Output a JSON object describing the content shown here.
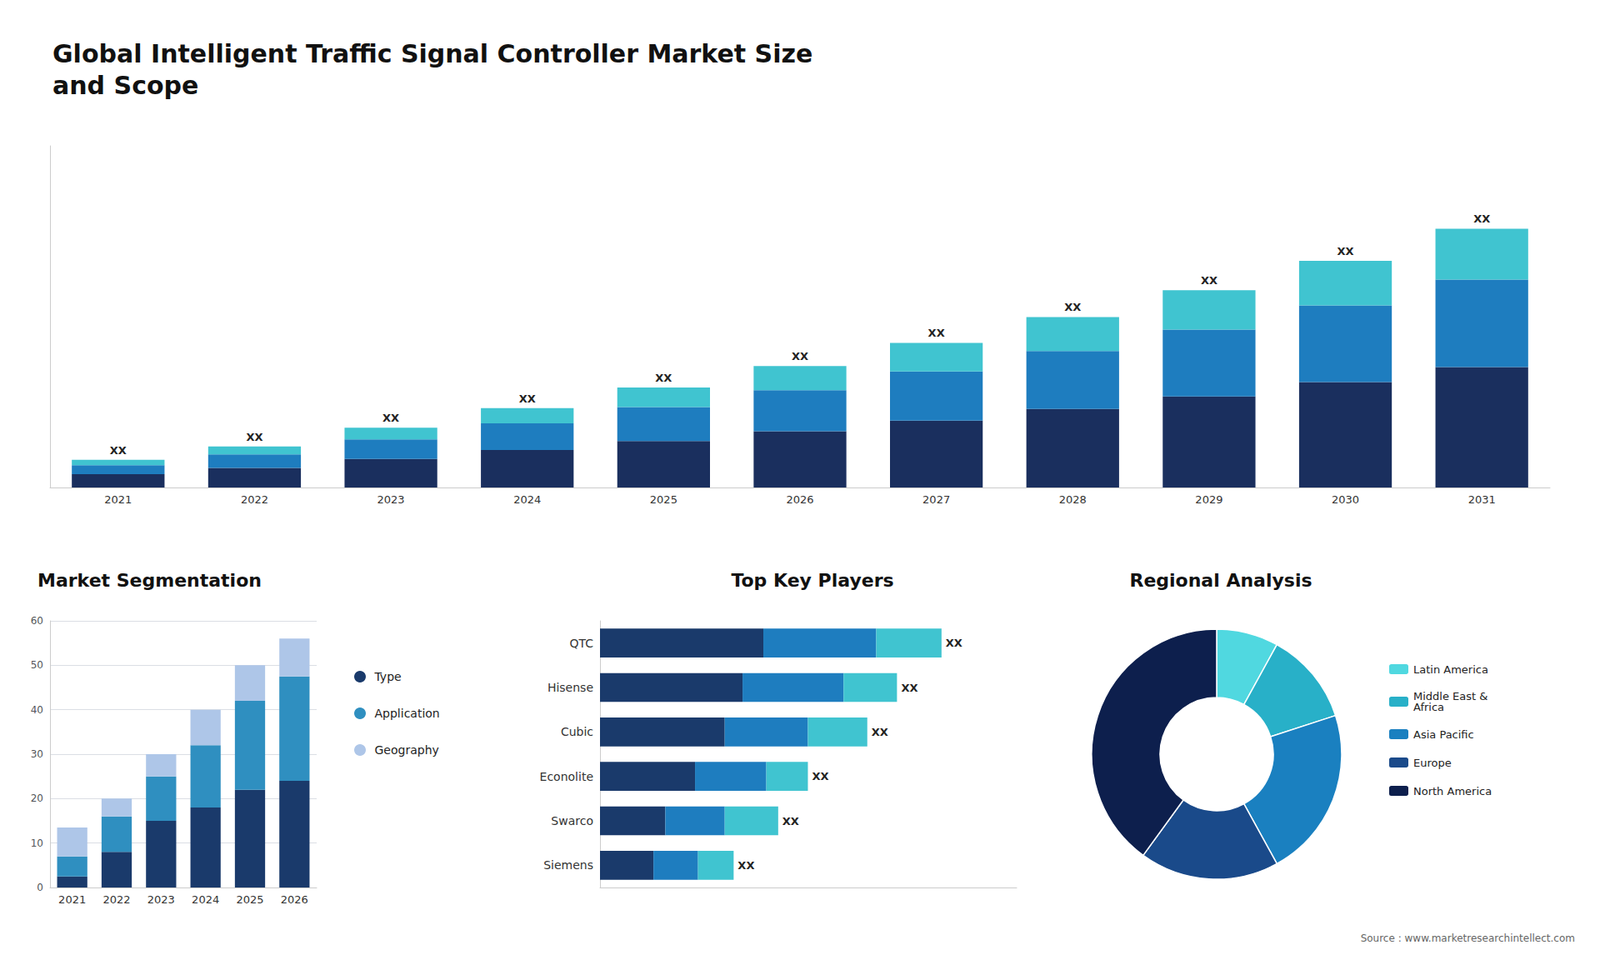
{
  "title": "Global Intelligent Traffic Signal Controller Market Size\nand Scope",
  "annotations": [
    "Source : www.marketresearchintellect.com"
  ],
  "chart_data": [
    {
      "type": "bar",
      "stacked": true,
      "categories": [
        "2021",
        "2022",
        "2023",
        "2024",
        "2025",
        "2026",
        "2027",
        "2028",
        "2029",
        "2030",
        "2031"
      ],
      "series": [
        {
          "color": "#1a2f5e",
          "values": [
            1.5,
            2.2,
            3.2,
            4.2,
            5.2,
            6.3,
            7.5,
            8.8,
            10.2,
            11.8,
            13.5
          ]
        },
        {
          "color": "#1e7dbf",
          "values": [
            1.0,
            1.5,
            2.2,
            3.0,
            3.8,
            4.6,
            5.5,
            6.5,
            7.5,
            8.6,
            9.8
          ]
        },
        {
          "color": "#40c4d0",
          "values": [
            0.6,
            0.9,
            1.3,
            1.7,
            2.2,
            2.7,
            3.2,
            3.8,
            4.4,
            5.0,
            5.7
          ],
          "value_labels": [
            "XX",
            "XX",
            "XX",
            "XX",
            "XX",
            "XX",
            "XX",
            "XX",
            "XX",
            "XX",
            "XX"
          ]
        }
      ],
      "ylim": [
        0,
        38.28
      ],
      "grid": false,
      "tick_labels": "x"
    },
    {
      "type": "bar",
      "title": "Market Segmentation",
      "stacked": true,
      "categories": [
        "2021",
        "2022",
        "2023",
        "2024",
        "2025",
        "2026"
      ],
      "series": [
        {
          "name": "Type",
          "color": "#1a3a6b",
          "values": [
            2.5,
            8.0,
            15.0,
            18.0,
            22.0,
            24.0
          ]
        },
        {
          "name": "Application",
          "color": "#2f8fc0",
          "values": [
            4.5,
            8.0,
            10.0,
            14.0,
            20.0,
            23.5
          ]
        },
        {
          "name": "Geography",
          "color": "#aec6e8",
          "values": [
            6.5,
            4.0,
            5.0,
            8.0,
            8.0,
            8.5
          ]
        }
      ],
      "ylim": [
        0,
        60
      ],
      "yticks": [
        0,
        10,
        20,
        30,
        40,
        50,
        60
      ],
      "grid": true,
      "legend": "right"
    },
    {
      "type": "bar",
      "title": "Top Key Players",
      "orientation": "horizontal",
      "stacked": true,
      "categories": [
        "QTC",
        "Hisense",
        "Cubic",
        "Econolite",
        "Swarco",
        "Siemens"
      ],
      "series": [
        {
          "color": "#1a3a6b",
          "values": [
            5.5,
            4.8,
            4.2,
            3.2,
            2.2,
            1.8
          ]
        },
        {
          "color": "#1e7dbf",
          "values": [
            3.8,
            3.4,
            2.8,
            2.4,
            2.0,
            1.5
          ]
        },
        {
          "color": "#40c4d0",
          "values": [
            2.2,
            1.8,
            2.0,
            1.4,
            1.8,
            1.2
          ],
          "value_labels": [
            "XX",
            "XX",
            "XX",
            "XX",
            "XX",
            "XX"
          ]
        }
      ],
      "xlim": [
        0,
        14.03
      ],
      "grid": false,
      "tick_labels": "y"
    },
    {
      "type": "pie",
      "title": "Regional Analysis",
      "categories": [
        "Latin America",
        "Middle East &\nAfrica",
        "Asia Pacific",
        "Europe",
        "North America"
      ],
      "values": [
        8,
        12,
        22,
        18,
        40
      ],
      "colors": [
        "#50d8e0",
        "#28b0c8",
        "#1a80c0",
        "#1a4a8a",
        "#0d1f4d"
      ],
      "legend": "right"
    }
  ]
}
